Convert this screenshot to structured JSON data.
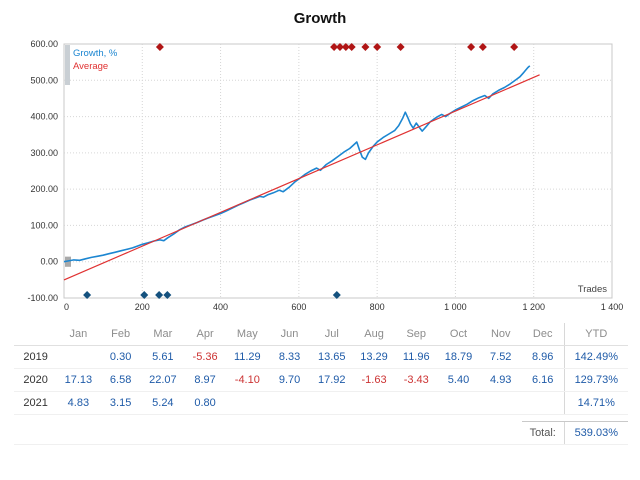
{
  "title": "Growth",
  "chart_data": {
    "type": "line",
    "title": "Growth",
    "xlabel": "Trades",
    "grid": true,
    "legend_position": "top-left",
    "xlim": [
      0,
      1400
    ],
    "ylim": [
      -100,
      600
    ],
    "x_ticks": [
      {
        "v": 0,
        "label": "0"
      },
      {
        "v": 200,
        "label": "200"
      },
      {
        "v": 400,
        "label": "400"
      },
      {
        "v": 600,
        "label": "600"
      },
      {
        "v": 800,
        "label": "800"
      },
      {
        "v": 1000,
        "label": "1 000"
      },
      {
        "v": 1200,
        "label": "1 200"
      },
      {
        "v": 1400,
        "label": "1 400"
      }
    ],
    "y_ticks": [
      {
        "v": 600,
        "label": "600.00"
      },
      {
        "v": 500,
        "label": "500.00"
      },
      {
        "v": 400,
        "label": "400.00"
      },
      {
        "v": 300,
        "label": "300.00"
      },
      {
        "v": 200,
        "label": "200.00"
      },
      {
        "v": 100,
        "label": "100.00"
      },
      {
        "v": 0,
        "label": "0.00"
      },
      {
        "v": -100,
        "label": "-100.00"
      }
    ],
    "legend": [
      {
        "label": "Growth, %",
        "color": "#1c86d1"
      },
      {
        "label": "Average",
        "color": "#e03232"
      }
    ],
    "series": [
      {
        "name": "Growth, %",
        "color": "#1c86d1",
        "points": [
          [
            0,
            0
          ],
          [
            10,
            2
          ],
          [
            25,
            5
          ],
          [
            40,
            4
          ],
          [
            55,
            8
          ],
          [
            70,
            12
          ],
          [
            85,
            15
          ],
          [
            100,
            18
          ],
          [
            115,
            22
          ],
          [
            130,
            26
          ],
          [
            145,
            30
          ],
          [
            160,
            34
          ],
          [
            175,
            38
          ],
          [
            190,
            44
          ],
          [
            200,
            48
          ],
          [
            215,
            52
          ],
          [
            230,
            57
          ],
          [
            245,
            60
          ],
          [
            255,
            58
          ],
          [
            265,
            66
          ],
          [
            280,
            76
          ],
          [
            295,
            88
          ],
          [
            310,
            96
          ],
          [
            325,
            102
          ],
          [
            340,
            108
          ],
          [
            355,
            115
          ],
          [
            370,
            121
          ],
          [
            385,
            127
          ],
          [
            400,
            133
          ],
          [
            415,
            140
          ],
          [
            430,
            148
          ],
          [
            445,
            156
          ],
          [
            460,
            163
          ],
          [
            475,
            170
          ],
          [
            490,
            176
          ],
          [
            500,
            180
          ],
          [
            510,
            178
          ],
          [
            520,
            184
          ],
          [
            535,
            190
          ],
          [
            550,
            197
          ],
          [
            560,
            193
          ],
          [
            575,
            205
          ],
          [
            590,
            220
          ],
          [
            600,
            228
          ],
          [
            615,
            240
          ],
          [
            630,
            250
          ],
          [
            645,
            258
          ],
          [
            655,
            252
          ],
          [
            670,
            268
          ],
          [
            685,
            278
          ],
          [
            700,
            290
          ],
          [
            715,
            302
          ],
          [
            730,
            312
          ],
          [
            740,
            322
          ],
          [
            748,
            330
          ],
          [
            755,
            308
          ],
          [
            762,
            288
          ],
          [
            770,
            282
          ],
          [
            778,
            300
          ],
          [
            790,
            318
          ],
          [
            800,
            330
          ],
          [
            815,
            342
          ],
          [
            830,
            352
          ],
          [
            845,
            362
          ],
          [
            855,
            375
          ],
          [
            865,
            395
          ],
          [
            872,
            412
          ],
          [
            878,
            398
          ],
          [
            885,
            380
          ],
          [
            892,
            368
          ],
          [
            900,
            382
          ],
          [
            908,
            370
          ],
          [
            915,
            360
          ],
          [
            925,
            372
          ],
          [
            935,
            385
          ],
          [
            945,
            393
          ],
          [
            955,
            400
          ],
          [
            965,
            406
          ],
          [
            975,
            400
          ],
          [
            985,
            408
          ],
          [
            1000,
            418
          ],
          [
            1015,
            426
          ],
          [
            1030,
            434
          ],
          [
            1045,
            444
          ],
          [
            1060,
            452
          ],
          [
            1075,
            458
          ],
          [
            1085,
            450
          ],
          [
            1095,
            462
          ],
          [
            1110,
            472
          ],
          [
            1125,
            480
          ],
          [
            1140,
            490
          ],
          [
            1155,
            502
          ],
          [
            1165,
            510
          ],
          [
            1175,
            522
          ],
          [
            1185,
            535
          ],
          [
            1190,
            540
          ]
        ]
      },
      {
        "name": "Average",
        "color": "#e03232",
        "points": [
          [
            0,
            -50
          ],
          [
            1215,
            515
          ]
        ]
      }
    ],
    "top_markers": {
      "name": "top-event-markers",
      "color": "#b01515",
      "y": 600,
      "x": [
        245,
        690,
        705,
        720,
        735,
        770,
        800,
        860,
        1040,
        1070,
        1150
      ]
    },
    "bottom_markers": {
      "name": "bottom-event-markers",
      "color": "#14517e",
      "y": -100,
      "x": [
        59,
        205,
        243,
        264,
        697
      ]
    }
  },
  "table": {
    "columns": [
      "Jan",
      "Feb",
      "Mar",
      "Apr",
      "May",
      "Jun",
      "Jul",
      "Aug",
      "Sep",
      "Oct",
      "Nov",
      "Dec",
      "YTD"
    ],
    "rows": [
      {
        "year": "2019",
        "months": [
          "",
          "0.30",
          "5.61",
          "-5.36",
          "11.29",
          "8.33",
          "13.65",
          "13.29",
          "11.96",
          "18.79",
          "7.52",
          "8.96"
        ],
        "ytd": "142.49%"
      },
      {
        "year": "2020",
        "months": [
          "17.13",
          "6.58",
          "22.07",
          "8.97",
          "-4.10",
          "9.70",
          "17.92",
          "-1.63",
          "-3.43",
          "5.40",
          "4.93",
          "6.16"
        ],
        "ytd": "129.73%"
      },
      {
        "year": "2021",
        "months": [
          "4.83",
          "3.15",
          "5.24",
          "0.80",
          "",
          "",
          "",
          "",
          "",
          "",
          "",
          ""
        ],
        "ytd": "14.71%"
      }
    ],
    "total_label": "Total:",
    "total_value": "539.03%"
  }
}
